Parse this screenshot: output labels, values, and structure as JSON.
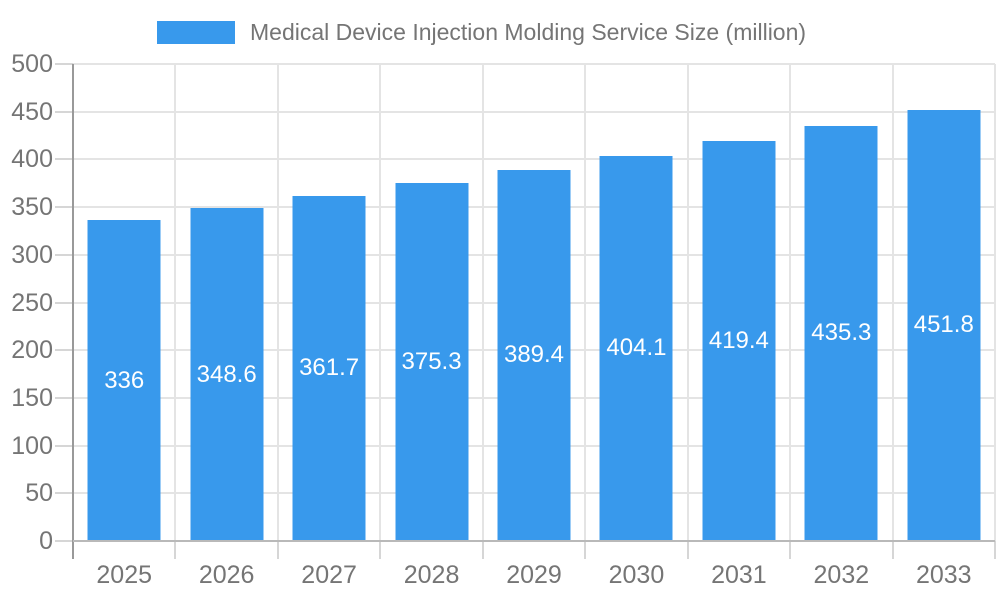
{
  "chart_data": {
    "type": "bar",
    "title": "Medical Device Injection Molding Service Size (million)",
    "categories": [
      "2025",
      "2026",
      "2027",
      "2028",
      "2029",
      "2030",
      "2031",
      "2032",
      "2033"
    ],
    "values": [
      336,
      348.6,
      361.7,
      375.3,
      389.4,
      404.1,
      419.4,
      435.3,
      451.8
    ],
    "value_labels": [
      "336",
      "348.6",
      "361.7",
      "375.3",
      "389.4",
      "404.1",
      "419.4",
      "435.3",
      "451.8"
    ],
    "xlabel": "",
    "ylabel": "",
    "ylim": [
      0,
      500
    ],
    "yticks": [
      0,
      50,
      100,
      150,
      200,
      250,
      300,
      350,
      400,
      450,
      500
    ],
    "grid": "horizontal-and-vertical",
    "legend_position": "top",
    "colors": {
      "bar": "#3899EC",
      "bar_label_text": "#FFFFFF",
      "axis_text": "#757575",
      "gridline": "#E4E4E4",
      "y_axis_line": "#999999",
      "x_axis_line": "#B9B9B9",
      "tick": "#D6D6D6",
      "legend_swatch": "#3899EC",
      "background": "#FFFFFF"
    }
  }
}
